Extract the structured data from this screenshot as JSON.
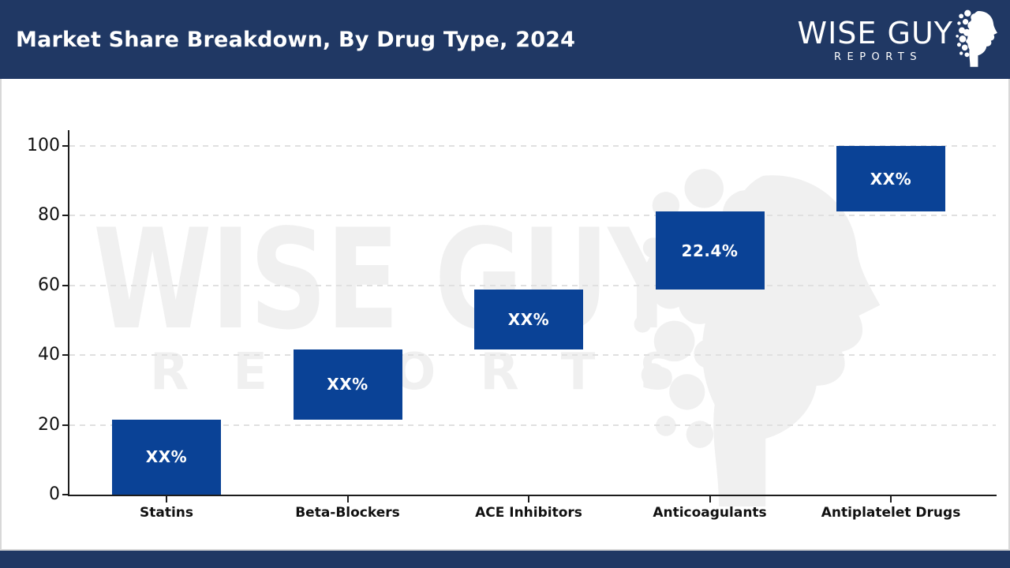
{
  "page": {
    "header": {
      "title": "Market Share Breakdown, By Drug Type, 2024",
      "logo_line1": "WISE GUY",
      "logo_line2": "REPORTS"
    },
    "watermark": {
      "line1": "WISE GUY",
      "line2": "REPORTS"
    }
  },
  "colors": {
    "header_bg": "#203864",
    "footer_bg": "#203864",
    "title_text": "#ffffff",
    "logo_text": "#ffffff",
    "bar": "#0a4296",
    "bar_label": "#ffffff",
    "axis": "#1c1c1c",
    "tick_label": "#111111",
    "grid": "#e0e0e0",
    "watermark": "#f0f0f0",
    "border": "#d8d8d8"
  },
  "chart_data": {
    "type": "bar",
    "subtype": "floating-segment-waterfall",
    "title": "Market Share Breakdown, By Drug Type, 2024",
    "categories": [
      "Statins",
      "Beta-Blockers",
      "ACE Inhibitors",
      "Anticoagulants",
      "Antiplatelet Drugs"
    ],
    "segments": [
      {
        "category": "Statins",
        "start": 0,
        "end": 21.6,
        "label": "XX%"
      },
      {
        "category": "Beta-Blockers",
        "start": 21.6,
        "end": 41.6,
        "label": "XX%"
      },
      {
        "category": "ACE Inhibitors",
        "start": 41.6,
        "end": 58.8,
        "label": "XX%"
      },
      {
        "category": "Anticoagulants",
        "start": 58.8,
        "end": 81.2,
        "label": "22.4%"
      },
      {
        "category": "Antiplatelet Drugs",
        "start": 81.2,
        "end": 100,
        "label": "XX%"
      }
    ],
    "ylim": [
      0,
      100
    ],
    "yticks": [
      0,
      20,
      40,
      60,
      80,
      100
    ],
    "xlabel": "",
    "ylabel": "",
    "grid": "horizontal-dashed",
    "legend": "none"
  }
}
